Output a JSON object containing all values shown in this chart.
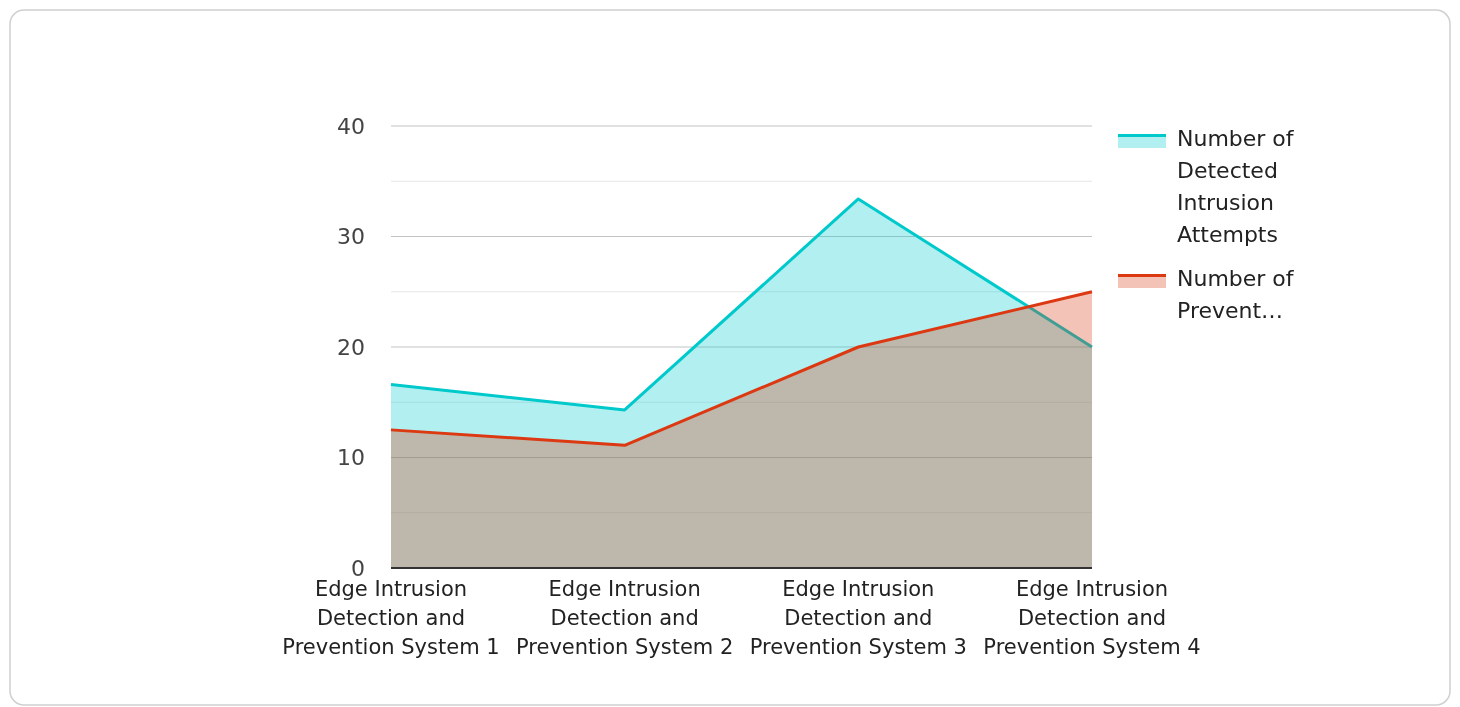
{
  "chart_data": {
    "type": "area",
    "categories": [
      "Edge Intrusion Detection and Prevention System 1",
      "Edge Intrusion Detection and Prevention System 2",
      "Edge Intrusion Detection and Prevention System 3",
      "Edge Intrusion Detection and Prevention System 4"
    ],
    "series": [
      {
        "name": "Number of Detected Intrusion Attempts",
        "color": "#00c9cc",
        "values": [
          16.6,
          14.3,
          33.4,
          20
        ]
      },
      {
        "name": "Number of Prevent…",
        "color": "#dc3912",
        "values": [
          12.5,
          11.1,
          20,
          25
        ]
      }
    ],
    "ylim": [
      0,
      40
    ],
    "yticks": [
      0,
      {
        "value": 5,
        "label": null
      },
      10,
      {
        "value": 15,
        "label": null
      },
      20,
      {
        "value": 25,
        "label": null
      },
      30,
      {
        "value": 35,
        "label": null
      },
      40
    ],
    "grid": "y",
    "legend": "top right"
  }
}
